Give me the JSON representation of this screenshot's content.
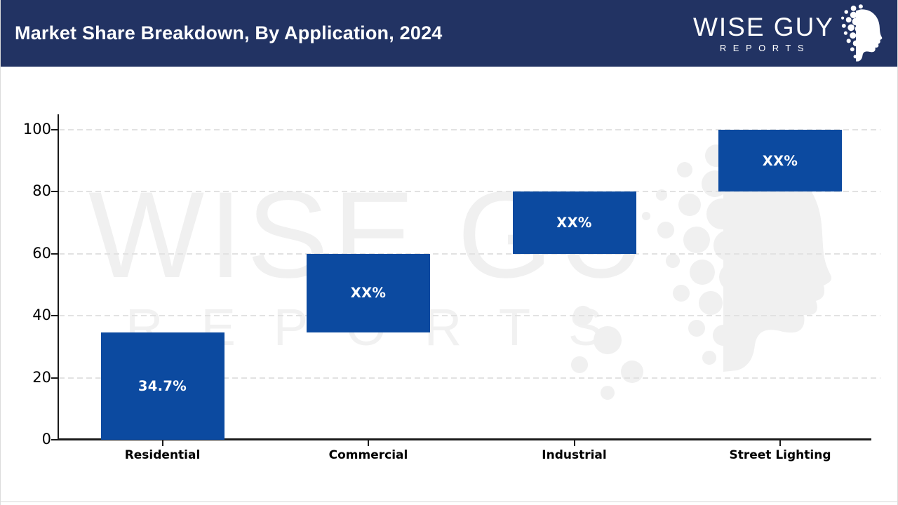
{
  "header": {
    "title": "Market Share Breakdown, By Application, 2024",
    "logo": {
      "name": "WISE GUY",
      "sub": "REPORTS"
    }
  },
  "watermark": {
    "line1": "WISE GU",
    "line2": "REPORTS"
  },
  "chart_data": {
    "type": "bar",
    "subtype": "waterfall-floating-bars",
    "title": "Market Share Breakdown, By Application, 2024",
    "categories": [
      "Residential",
      "Commercial",
      "Industrial",
      "Street Lighting"
    ],
    "bars": [
      {
        "category": "Residential",
        "start": 0,
        "end": 34.7,
        "label": "34.7%"
      },
      {
        "category": "Commercial",
        "start": 34.7,
        "end": 60,
        "label": "XX%"
      },
      {
        "category": "Industrial",
        "start": 60,
        "end": 80,
        "label": "XX%"
      },
      {
        "category": "Street Lighting",
        "start": 80,
        "end": 100,
        "label": "XX%"
      }
    ],
    "yticks": [
      0,
      20,
      40,
      60,
      80,
      100
    ],
    "ylim": [
      0,
      105
    ],
    "xlabel": "",
    "ylabel": "",
    "grid": "horizontal-dashed",
    "legend": "none",
    "bar_color": "#0c4aa0",
    "label_color": "#ffffff",
    "header_color": "#223363"
  }
}
